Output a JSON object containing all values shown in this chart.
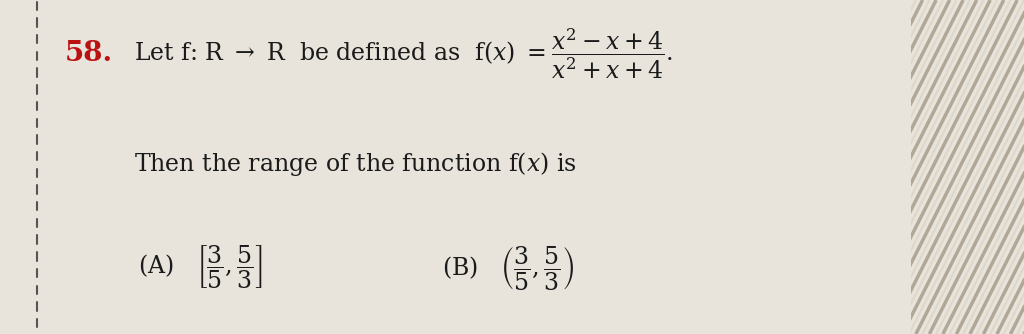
{
  "background_color": "#e8e4dc",
  "question_number_color": "#bb1111",
  "text_color": "#1a1a1a",
  "stripe_color": "#c8bfaa",
  "stripe_line_color": "#b0a890",
  "fig_width": 10.24,
  "fig_height": 3.34,
  "dpi": 100
}
